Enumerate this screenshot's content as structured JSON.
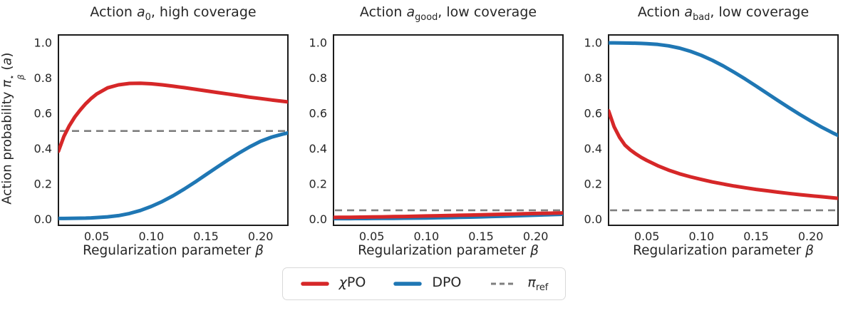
{
  "figure": {
    "ylabel": {
      "prefix": "Action probability ",
      "pi": "π",
      "sup": "⋆",
      "sub": "β",
      "open": " (",
      "var": "a",
      "close": ")"
    },
    "xlabel": {
      "text": "Regularization parameter ",
      "var": "β"
    },
    "colors": {
      "chipo": "#d62728",
      "dpo": "#1f77b4",
      "ref": "#7f7f7f",
      "spine": "#1c1c1c",
      "text": "#262626"
    }
  },
  "legend": {
    "position": "bottom-center",
    "items": [
      {
        "key": "chipo",
        "style": "solid",
        "color": "#d62728",
        "label_italic": "χ",
        "label_text": "PO",
        "label_sub": ""
      },
      {
        "key": "dpo",
        "style": "solid",
        "color": "#1f77b4",
        "label_italic": "",
        "label_text": "DPO",
        "label_sub": ""
      },
      {
        "key": "piref",
        "style": "dashed",
        "color": "#7f7f7f",
        "label_italic": "π",
        "label_text": "",
        "label_sub": "ref"
      }
    ]
  },
  "chart_data": [
    {
      "type": "line",
      "title": {
        "prefix": "Action ",
        "var": "a",
        "sub": "0",
        "suffix": ", high coverage"
      },
      "xlabel": "Regularization parameter β",
      "ylabel": "Action probability π⋆β(a)",
      "xlim": [
        0.015,
        0.225
      ],
      "ylim": [
        -0.035,
        1.045
      ],
      "xticks": [
        0.05,
        0.1,
        0.15,
        0.2
      ],
      "xtick_labels": [
        "0.05",
        "0.10",
        "0.15",
        "0.20"
      ],
      "yticks": [
        0.0,
        0.2,
        0.4,
        0.6,
        0.8,
        1.0
      ],
      "ytick_labels": [
        "0.0",
        "0.2",
        "0.4",
        "0.6",
        "0.8",
        "1.0"
      ],
      "ref_line": 0.5,
      "series": [
        {
          "name": "χPO",
          "color": "#d62728",
          "x": [
            0.015,
            0.02,
            0.025,
            0.03,
            0.035,
            0.04,
            0.045,
            0.05,
            0.06,
            0.07,
            0.08,
            0.09,
            0.1,
            0.11,
            0.12,
            0.13,
            0.14,
            0.15,
            0.16,
            0.17,
            0.18,
            0.19,
            0.2,
            0.21,
            0.22,
            0.225
          ],
          "y": [
            0.385,
            0.47,
            0.53,
            0.58,
            0.62,
            0.655,
            0.685,
            0.71,
            0.745,
            0.762,
            0.77,
            0.771,
            0.768,
            0.762,
            0.754,
            0.746,
            0.737,
            0.728,
            0.719,
            0.71,
            0.701,
            0.692,
            0.684,
            0.676,
            0.669,
            0.665
          ]
        },
        {
          "name": "DPO",
          "color": "#1f77b4",
          "x": [
            0.015,
            0.02,
            0.025,
            0.03,
            0.035,
            0.04,
            0.045,
            0.05,
            0.06,
            0.07,
            0.08,
            0.09,
            0.1,
            0.11,
            0.12,
            0.13,
            0.14,
            0.15,
            0.16,
            0.17,
            0.18,
            0.19,
            0.2,
            0.21,
            0.22,
            0.225
          ],
          "y": [
            0.004,
            0.004,
            0.0045,
            0.005,
            0.0055,
            0.006,
            0.007,
            0.009,
            0.013,
            0.02,
            0.032,
            0.049,
            0.072,
            0.1,
            0.133,
            0.17,
            0.21,
            0.252,
            0.294,
            0.335,
            0.374,
            0.41,
            0.442,
            0.465,
            0.482,
            0.489
          ]
        }
      ]
    },
    {
      "type": "line",
      "title": {
        "prefix": "Action ",
        "var": "a",
        "sub": "good",
        "suffix": ", low coverage"
      },
      "xlabel": "Regularization parameter β",
      "xlim": [
        0.015,
        0.225
      ],
      "ylim": [
        -0.035,
        1.045
      ],
      "xticks": [
        0.05,
        0.1,
        0.15,
        0.2
      ],
      "xtick_labels": [
        "0.05",
        "0.10",
        "0.15",
        "0.20"
      ],
      "yticks": [
        0.0,
        0.2,
        0.4,
        0.6,
        0.8,
        1.0
      ],
      "ytick_labels": [
        "0.0",
        "0.2",
        "0.4",
        "0.6",
        "0.8",
        "1.0"
      ],
      "ref_line": 0.05,
      "series": [
        {
          "name": "χPO",
          "color": "#d62728",
          "x": [
            0.015,
            0.02,
            0.025,
            0.03,
            0.035,
            0.04,
            0.045,
            0.05,
            0.06,
            0.07,
            0.08,
            0.09,
            0.1,
            0.11,
            0.12,
            0.13,
            0.14,
            0.15,
            0.16,
            0.17,
            0.18,
            0.19,
            0.2,
            0.21,
            0.22,
            0.225
          ],
          "y": [
            0.01,
            0.0102,
            0.0105,
            0.0108,
            0.0111,
            0.0115,
            0.0119,
            0.0123,
            0.0132,
            0.0142,
            0.0153,
            0.0165,
            0.0178,
            0.0191,
            0.0205,
            0.0219,
            0.0233,
            0.0248,
            0.0262,
            0.0277,
            0.0291,
            0.0306,
            0.032,
            0.0334,
            0.0348,
            0.0355
          ]
        },
        {
          "name": "DPO",
          "color": "#1f77b4",
          "x": [
            0.015,
            0.02,
            0.025,
            0.03,
            0.035,
            0.04,
            0.045,
            0.05,
            0.06,
            0.07,
            0.08,
            0.09,
            0.1,
            0.11,
            0.12,
            0.13,
            0.14,
            0.15,
            0.16,
            0.17,
            0.18,
            0.19,
            0.2,
            0.21,
            0.22,
            0.225
          ],
          "y": [
            0.003,
            0.003,
            0.0031,
            0.0032,
            0.0033,
            0.0034,
            0.0036,
            0.0038,
            0.0042,
            0.0047,
            0.0053,
            0.006,
            0.0068,
            0.0078,
            0.009,
            0.0103,
            0.0117,
            0.0133,
            0.015,
            0.0168,
            0.0187,
            0.0207,
            0.0227,
            0.0248,
            0.0268,
            0.0278
          ]
        }
      ]
    },
    {
      "type": "line",
      "title": {
        "prefix": "Action ",
        "var": "a",
        "sub": "bad",
        "suffix": ", low coverage"
      },
      "xlabel": "Regularization parameter β",
      "xlim": [
        0.015,
        0.225
      ],
      "ylim": [
        -0.035,
        1.045
      ],
      "xticks": [
        0.05,
        0.1,
        0.15,
        0.2
      ],
      "xtick_labels": [
        "0.05",
        "0.10",
        "0.15",
        "0.20"
      ],
      "yticks": [
        0.0,
        0.2,
        0.4,
        0.6,
        0.8,
        1.0
      ],
      "ytick_labels": [
        "0.0",
        "0.2",
        "0.4",
        "0.6",
        "0.8",
        "1.0"
      ],
      "ref_line": 0.05,
      "series": [
        {
          "name": "χPO",
          "color": "#d62728",
          "x": [
            0.015,
            0.02,
            0.025,
            0.03,
            0.035,
            0.04,
            0.045,
            0.05,
            0.06,
            0.07,
            0.08,
            0.09,
            0.1,
            0.11,
            0.12,
            0.13,
            0.14,
            0.15,
            0.16,
            0.17,
            0.18,
            0.19,
            0.2,
            0.21,
            0.22,
            0.225
          ],
          "y": [
            0.615,
            0.525,
            0.465,
            0.42,
            0.392,
            0.37,
            0.35,
            0.333,
            0.303,
            0.278,
            0.257,
            0.24,
            0.225,
            0.211,
            0.199,
            0.188,
            0.178,
            0.169,
            0.161,
            0.153,
            0.146,
            0.139,
            0.133,
            0.127,
            0.121,
            0.118
          ]
        },
        {
          "name": "DPO",
          "color": "#1f77b4",
          "x": [
            0.015,
            0.02,
            0.025,
            0.03,
            0.035,
            0.04,
            0.045,
            0.05,
            0.06,
            0.07,
            0.08,
            0.09,
            0.1,
            0.11,
            0.12,
            0.13,
            0.14,
            0.15,
            0.16,
            0.17,
            0.18,
            0.19,
            0.2,
            0.21,
            0.22,
            0.225
          ],
          "y": [
            1.0,
            1.0,
            0.9995,
            0.999,
            0.9985,
            0.998,
            0.997,
            0.9955,
            0.991,
            0.983,
            0.97,
            0.952,
            0.929,
            0.901,
            0.869,
            0.833,
            0.795,
            0.755,
            0.714,
            0.673,
            0.633,
            0.594,
            0.557,
            0.522,
            0.49,
            0.475
          ]
        }
      ]
    }
  ]
}
